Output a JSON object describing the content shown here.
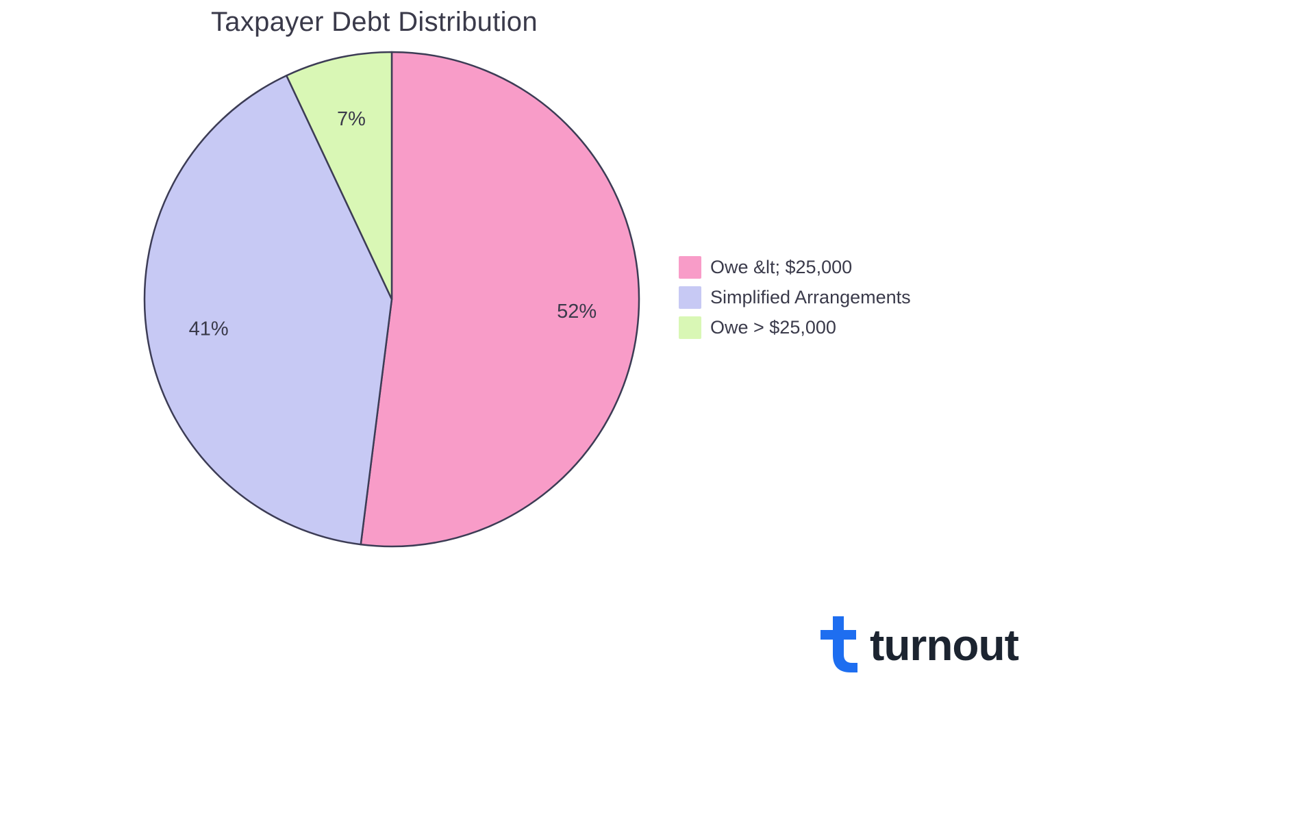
{
  "chart_data": {
    "type": "pie",
    "title": "Taxpayer Debt Distribution",
    "labels": [
      "Owe &lt; $25,000",
      "Simplified Arrangements",
      "Owe > $25,000"
    ],
    "values": [
      52,
      41,
      7
    ],
    "unit": "%",
    "slice_labels": [
      "52%",
      "41%",
      "7%"
    ],
    "colors": [
      "#F89CC8",
      "#C7C9F4",
      "#D9F7B5"
    ],
    "stroke_color": "#3C3C55",
    "start_angle_deg": 0,
    "direction": "clockwise",
    "legend_position": "right",
    "label_color": "#3A3A4A"
  },
  "logo": {
    "text": "turnout",
    "icon_color": "#1E6EF0"
  }
}
